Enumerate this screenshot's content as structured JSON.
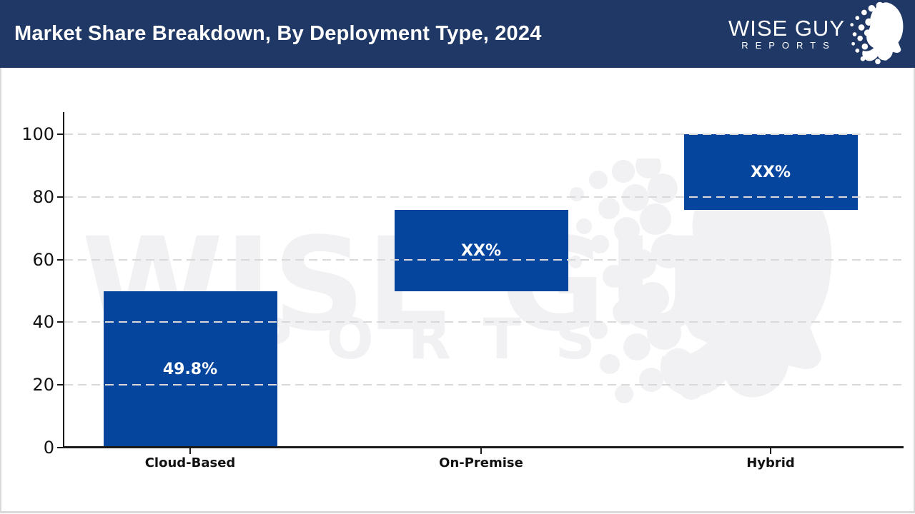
{
  "header": {
    "title": "Market Share Breakdown, By Deployment Type, 2024",
    "logo": {
      "line1": "WISE GUY",
      "line2": "REPORTS"
    }
  },
  "watermark": {
    "line1": "WISE GUY",
    "line2": "REPORTS"
  },
  "chart_data": {
    "type": "bar",
    "subtype": "floating-segment-breakdown",
    "title": "Market Share Breakdown, By Deployment Type, 2024",
    "categories": [
      "Cloud-Based",
      "On-Premise",
      "Hybrid"
    ],
    "segments": [
      {
        "category": "Cloud-Based",
        "start": 0,
        "end": 49.8,
        "label": "49.8%"
      },
      {
        "category": "On-Premise",
        "start": 49.8,
        "end": 75.8,
        "label": "XX%"
      },
      {
        "category": "Hybrid",
        "start": 75.8,
        "end": 100,
        "label": "XX%"
      }
    ],
    "xlabel": "",
    "ylabel": "",
    "ylim": [
      0,
      100
    ],
    "yticks": [
      0,
      20,
      40,
      60,
      80,
      100
    ],
    "grid": "horizontal-dashed",
    "legend": "none",
    "bar_color": "#05459e",
    "bar_label_color": "#ffffff",
    "grid_color": "#d9d9d9",
    "axis_color": "#1a1a1a"
  },
  "colors": {
    "header_bg": "#203865",
    "watermark": "#f1f1f4",
    "card_border": "#d9d9d9"
  }
}
